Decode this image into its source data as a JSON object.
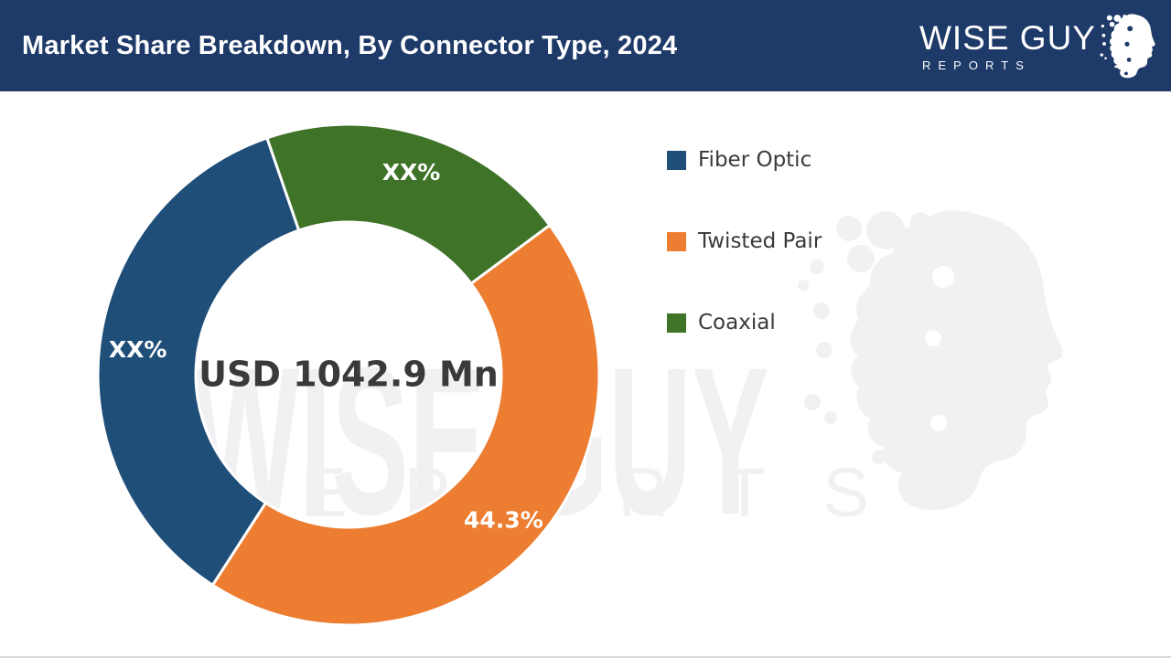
{
  "header": {
    "title": "Market Share Breakdown, By Connector Type, 2024",
    "bg_color": "#1e3a68",
    "logo": {
      "name": "WISE GUY",
      "tagline": "REPORTS"
    }
  },
  "watermark": {
    "line1": "WISE GUY",
    "line2": "REPORTS",
    "color": "#f1f1f4"
  },
  "chart_data": {
    "type": "pie",
    "donut": true,
    "title": "Market Share Breakdown, By Connector Type, 2024",
    "center_label": "USD 1042.9 Mn",
    "legend_position": "right",
    "start_angle_deg": -19,
    "slices": [
      {
        "label": "Coaxial",
        "value": 20.1,
        "display_label": "XX%",
        "color": "#3e7328"
      },
      {
        "label": "Twisted Pair",
        "value": 44.3,
        "display_label": "44.3%",
        "color": "#ed7d31"
      },
      {
        "label": "Fiber Optic",
        "value": 35.6,
        "display_label": "XX%",
        "color": "#1f4e79"
      }
    ]
  },
  "legend": {
    "items": [
      {
        "label": "Fiber Optic",
        "color": "#1f4e79"
      },
      {
        "label": "Twisted Pair",
        "color": "#ed7d31"
      },
      {
        "label": "Coaxial",
        "color": "#3e7328"
      }
    ]
  }
}
